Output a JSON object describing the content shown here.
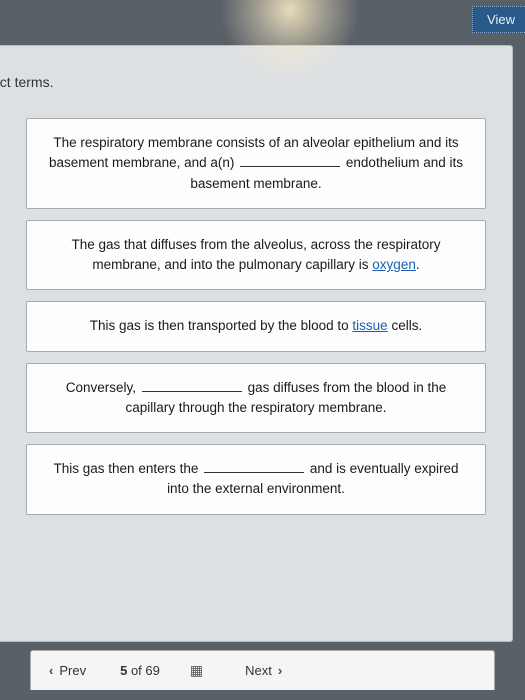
{
  "topBar": {
    "viewLabel": "View"
  },
  "instruction": "ect terms.",
  "questions": {
    "q1": {
      "part1": "The respiratory membrane consists of an alveolar epithelium and its basement membrane, and a(n)",
      "part2": "endothelium and its basement membrane."
    },
    "q2": {
      "part1": "The gas that diffuses from the alveolus, across the respiratory membrane, and into the pulmonary capillary is",
      "answer": "oxygen",
      "part2": "."
    },
    "q3": {
      "part1": "This gas is then transported by the blood to",
      "answer": "tissue",
      "part2": "cells."
    },
    "q4": {
      "part1": "Conversely,",
      "part2": "gas diffuses from the blood in the capillary through the respiratory membrane."
    },
    "q5": {
      "part1": "This gas then enters the",
      "part2": "and is eventually expired into the external environment."
    }
  },
  "nav": {
    "prev": "Prev",
    "current": "5",
    "of": "of",
    "total": "69",
    "next": "Next"
  }
}
